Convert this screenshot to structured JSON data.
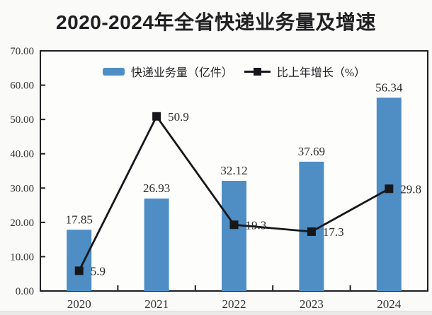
{
  "title": "2020-2024年全省快递业务量及增速",
  "colors": {
    "bar": "#4e8ec5",
    "line": "#17171b",
    "axis": "#1f1f23",
    "tick_text": "#333336",
    "label_text": "#2b2b2e",
    "plot_fill": "#fdfdfc",
    "page_bg": "#fafaf8"
  },
  "chart_data": {
    "type": "bar+line",
    "title": "2020-2024年全省快递业务量及增速",
    "categories": [
      "2020",
      "2021",
      "2022",
      "2023",
      "2024"
    ],
    "series": [
      {
        "name": "快递业务量（亿件）",
        "type": "bar",
        "color": "#4e8ec5",
        "values": [
          17.85,
          26.93,
          32.12,
          37.69,
          56.34
        ],
        "labels": [
          "17.85",
          "26.93",
          "32.12",
          "37.69",
          "56.34"
        ]
      },
      {
        "name": "比上年增长（%）",
        "type": "line",
        "color": "#17171b",
        "marker": "square",
        "values": [
          5.9,
          50.9,
          19.3,
          17.3,
          29.8
        ],
        "labels": [
          "5.9",
          "50.9",
          "19.3",
          "17.3",
          "29.8"
        ]
      }
    ],
    "y_axis": {
      "min": 0,
      "max": 70,
      "step": 10,
      "tick_labels": [
        "0.00",
        "10.00",
        "20.00",
        "30.00",
        "40.00",
        "50.00",
        "60.00",
        "70.00"
      ]
    },
    "x_axis": {
      "tick_labels": [
        "2020",
        "2021",
        "2022",
        "2023",
        "2024"
      ]
    },
    "legend_position": "top-center-inside",
    "grid": false
  }
}
